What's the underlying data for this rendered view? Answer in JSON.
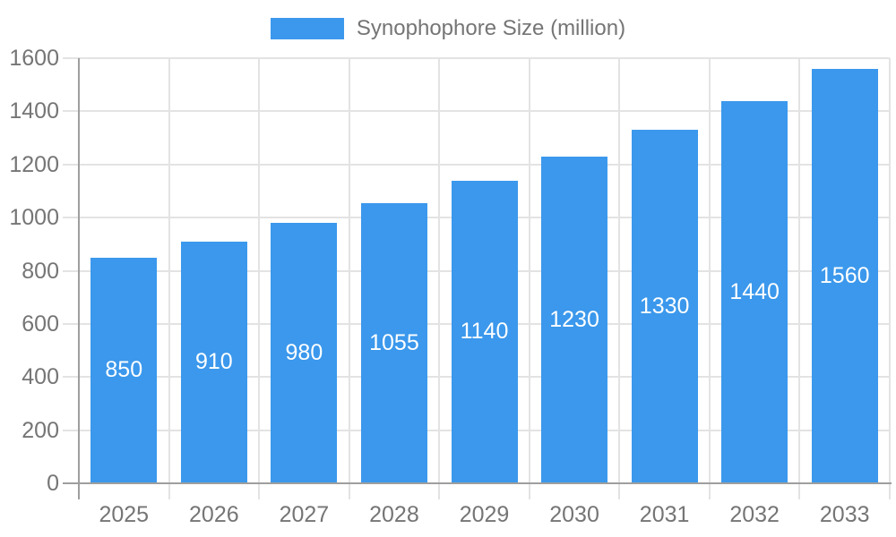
{
  "chart_data": {
    "type": "bar",
    "title": "",
    "legend": {
      "label": "Synophophore Size (million)",
      "position": "top-center"
    },
    "categories": [
      "2025",
      "2026",
      "2027",
      "2028",
      "2029",
      "2030",
      "2031",
      "2032",
      "2033"
    ],
    "series": [
      {
        "name": "Synophophore Size (million)",
        "values": [
          850,
          910,
          980,
          1055,
          1140,
          1230,
          1330,
          1440,
          1560
        ]
      }
    ],
    "xlabel": "",
    "ylabel": "",
    "ylim": [
      0,
      1600
    ],
    "ytick_step": 200,
    "yticks": [
      0,
      200,
      400,
      600,
      800,
      1000,
      1200,
      1400,
      1600
    ],
    "grid": true,
    "value_labels_inside_bars": true,
    "colors": {
      "bar": "#3b98ec",
      "gridline": "#e3e3e3",
      "axis": "#9e9e9e",
      "tick_label": "#757575",
      "bar_label": "#ffffff",
      "background": "#ffffff"
    }
  }
}
